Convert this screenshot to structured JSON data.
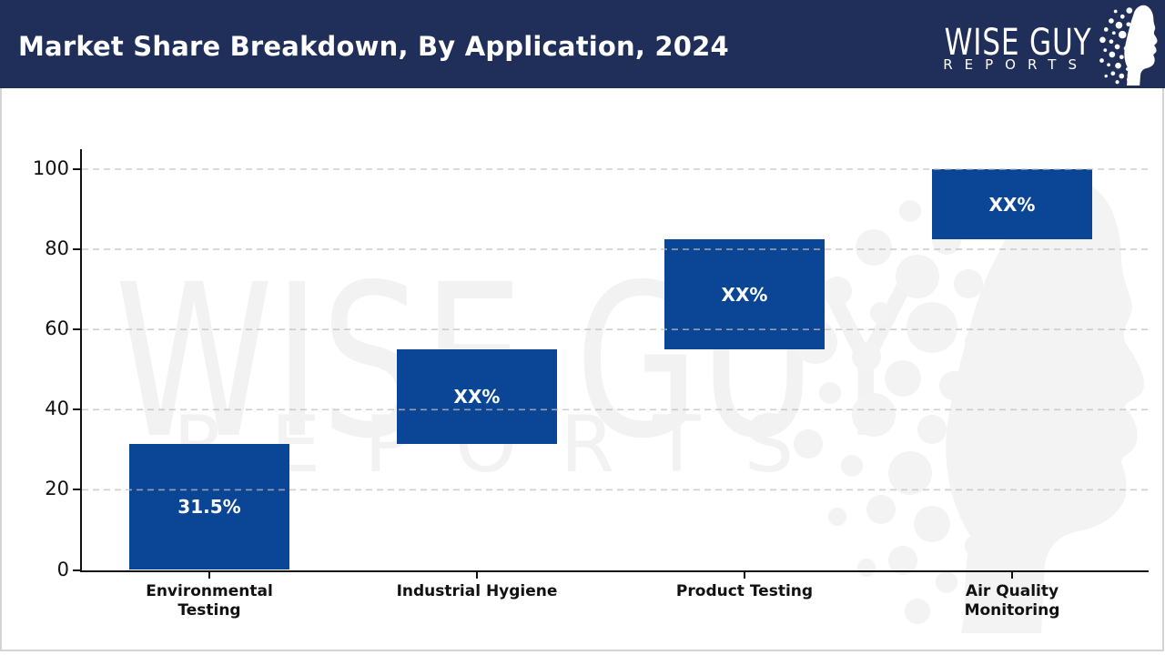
{
  "header": {
    "title": "Market Share Breakdown, By Application, 2024",
    "logo": {
      "line1": "WISE GUY",
      "line2": "REPORTS",
      "icon": "wiseguy-face-icon"
    }
  },
  "watermark": {
    "line1": "WISE GUY",
    "line2": "REPORTS"
  },
  "colors": {
    "header_bg": "#1f2f5a",
    "bar": "#0b4696",
    "bar_label": "#ffffff",
    "axis": "#111111",
    "grid": "#bfbfbf",
    "watermark": "#f2f2f2",
    "frame_border": "#d4d4d4"
  },
  "chart_data": {
    "type": "bar",
    "subtype": "waterfall",
    "title": "Market Share Breakdown, By Application, 2024",
    "xlabel": "",
    "ylabel": "",
    "ylim": [
      0,
      100
    ],
    "yticks": [
      0,
      20,
      40,
      60,
      80,
      100
    ],
    "grid": "horizontal-dashed",
    "legend": "none",
    "categories": [
      "Environmental Testing",
      "Industrial Hygiene",
      "Product Testing",
      "Air Quality Monitoring"
    ],
    "category_display_lines": [
      [
        "Environmental",
        "Testing"
      ],
      [
        "Industrial Hygiene"
      ],
      [
        "Product Testing"
      ],
      [
        "Air Quality",
        "Monitoring"
      ]
    ],
    "series": [
      {
        "name": "Market Share",
        "segments": [
          {
            "category": "Environmental Testing",
            "start": 0,
            "end": 31.5,
            "label": "31.5%"
          },
          {
            "category": "Industrial Hygiene",
            "start": 31.5,
            "end": 55,
            "label": "XX%"
          },
          {
            "category": "Product Testing",
            "start": 55,
            "end": 82.5,
            "label": "XX%"
          },
          {
            "category": "Air Quality Monitoring",
            "start": 82.5,
            "end": 100,
            "label": "XX%"
          }
        ]
      }
    ]
  }
}
